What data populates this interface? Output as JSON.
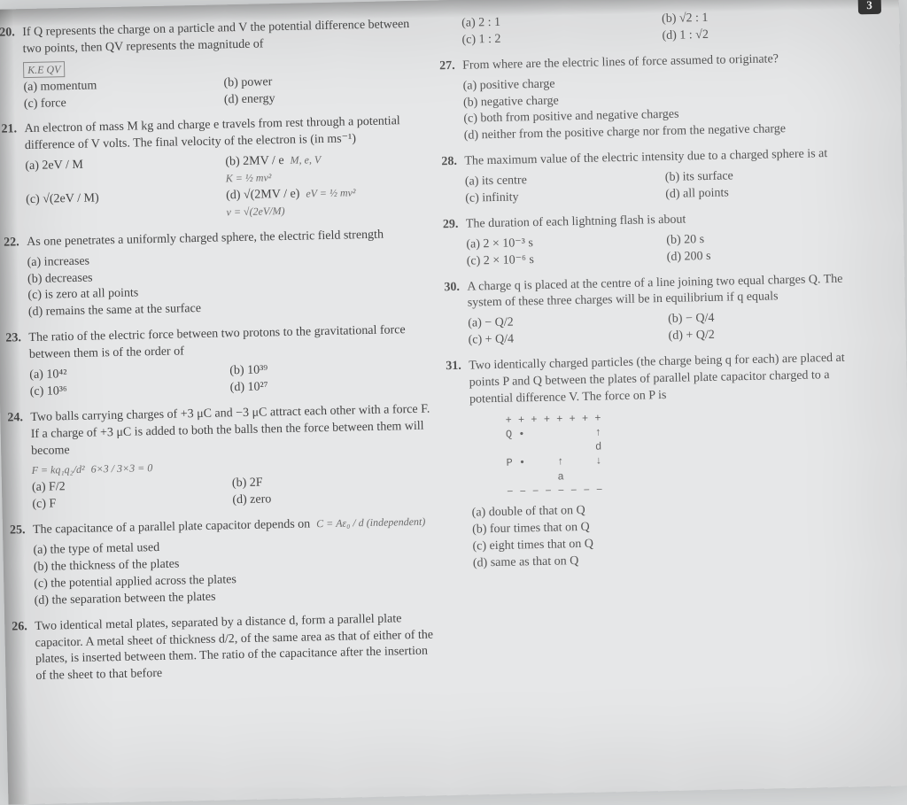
{
  "page_number": "3",
  "left": {
    "q20": {
      "num": "20.",
      "stem": "If Q represents the charge on a particle and V the potential difference between two points, then QV represents the magnitude of",
      "note": "K.E QV",
      "a": "(a) momentum",
      "b": "(b) power",
      "c": "(c) force",
      "d": "(d) energy"
    },
    "q21": {
      "num": "21.",
      "stem": "An electron of mass M kg and charge e travels from rest through a potential difference of V volts. The final velocity of the electron is (in ms⁻¹)",
      "hand1": "M, e, V",
      "hand2": "K = ½ mv²",
      "hand3": "eV = ½ mv²",
      "hand4": "v = √(2eV/M)",
      "a": "(a) 2eV / M",
      "b": "(b) 2MV / e",
      "c": "(c) √(2eV / M)",
      "d": "(d) √(2MV / e)"
    },
    "q22": {
      "num": "22.",
      "stem": "As one penetrates a uniformly charged sphere, the electric field strength",
      "a": "(a) increases",
      "b": "(b) decreases",
      "c": "(c) is zero at all points",
      "d": "(d) remains the same at the surface"
    },
    "q23": {
      "num": "23.",
      "stem": "The ratio of the electric force between two protons to the gravitational force between them is of the order of",
      "a": "(a) 10⁴²",
      "b": "(b) 10³⁹",
      "c": "(c) 10³⁶",
      "d": "(d) 10²⁷"
    },
    "q24": {
      "num": "24.",
      "stem": "Two balls carrying charges of +3 μC and −3 μC attract each other with a force F. If a charge of +3 μC is added to both the balls then the force between them will become",
      "hand1": "F = kq₁q₂/d²",
      "hand2": "6×3 / 3×3 = 0",
      "a": "(a) F/2",
      "b": "(b) 2F",
      "c": "(c) F",
      "d": "(d) zero"
    },
    "q25": {
      "num": "25.",
      "stem": "The capacitance of a parallel plate capacitor depends on",
      "hand": "C = Aε₀ / d  (independent)",
      "a": "(a) the type of metal used",
      "b": "(b) the thickness of the plates",
      "c": "(c) the potential applied across the plates",
      "d": "(d) the separation between the plates"
    },
    "q26": {
      "num": "26.",
      "stem": "Two identical metal plates, separated by a distance d, form a parallel plate capacitor. A metal sheet of thickness d/2, of the same area as that of either of the plates, is inserted between them. The ratio of the capacitance after the insertion of the sheet to that before"
    }
  },
  "right": {
    "q26o": {
      "a": "(a) 2 : 1",
      "b": "(b) √2 : 1",
      "c": "(c) 1 : 2",
      "d": "(d) 1 : √2"
    },
    "q27": {
      "num": "27.",
      "stem": "From where are the electric lines of force assumed to originate?",
      "a": "(a) positive charge",
      "b": "(b) negative charge",
      "c": "(c) both from positive and negative charges",
      "d": "(d) neither from the positive charge nor from the negative charge"
    },
    "q28": {
      "num": "28.",
      "stem": "The maximum value of the electric intensity due to a charged sphere is at",
      "a": "(a) its centre",
      "b": "(b) its surface",
      "c": "(c) infinity",
      "d": "(d) all points"
    },
    "q29": {
      "num": "29.",
      "stem": "The duration of each lightning flash is about",
      "a": "(a) 2 × 10⁻³ s",
      "b": "(b) 20 s",
      "c": "(c) 2 × 10⁻⁶ s",
      "d": "(d) 200 s"
    },
    "q30": {
      "num": "30.",
      "stem": "A charge q is placed at the centre of a line joining two equal charges Q. The system of these three charges will be in equilibrium if q equals",
      "a": "(a) − Q/2",
      "b": "(b) − Q/4",
      "c": "(c) + Q/4",
      "d": "(d) + Q/2"
    },
    "q31": {
      "num": "31.",
      "stem": "Two identically charged particles (the charge being q for each) are placed at points P and Q between the plates of parallel plate capacitor charged to a potential difference V. The force on P is",
      "diagram": "+ + + + + + + +\nQ •           ↑\n              d\nP •     ↑     ↓\n        a\n− − − − − − − −",
      "a": "(a) double of that on Q",
      "b": "(b) four times that on Q",
      "c": "(c) eight times that on Q",
      "d": "(d) same as that on Q"
    }
  }
}
